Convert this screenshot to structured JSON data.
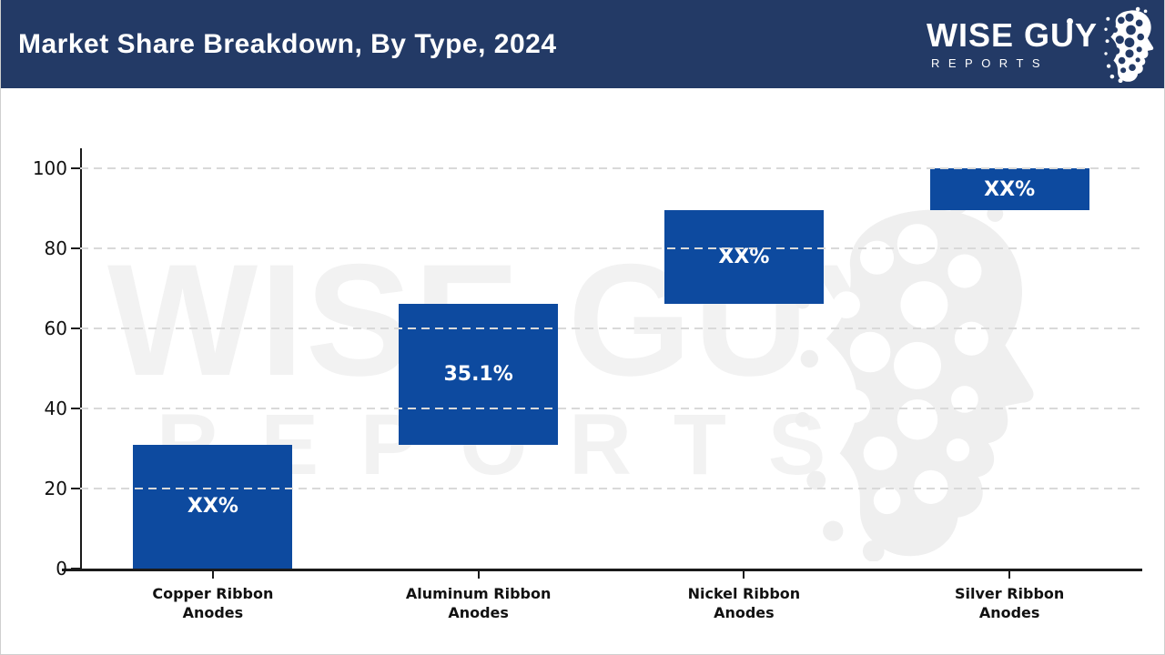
{
  "header": {
    "title": "Market Share Breakdown, By Type, 2024",
    "logo": {
      "line1": "WISE GUY",
      "line2": "REPORTS"
    }
  },
  "watermark": {
    "line1": "WISE GUY",
    "line2": "REPORTS"
  },
  "colors": {
    "header_bg": "#233a66",
    "bar": "#0d4a9f",
    "axis": "#1a1a1a",
    "grid": "#d9d9d9",
    "bar_label": "#ffffff",
    "watermark": "#f2f2f2"
  },
  "chart_data": {
    "type": "bar",
    "subtype": "waterfall",
    "title": "Market Share Breakdown, By Type, 2024",
    "categories": [
      "Copper Ribbon Anodes",
      "Aluminum Ribbon Anodes",
      "Nickel Ribbon Anodes",
      "Silver Ribbon Anodes"
    ],
    "category_lines": [
      [
        "Copper Ribbon",
        "Anodes"
      ],
      [
        "Aluminum Ribbon",
        "Anodes"
      ],
      [
        "Nickel Ribbon",
        "Anodes"
      ],
      [
        "Silver Ribbon",
        "Anodes"
      ]
    ],
    "segments": [
      {
        "category": "Copper Ribbon Anodes",
        "label": "XX%",
        "start": 0,
        "end": 31.0,
        "value": 31.0,
        "masked": true
      },
      {
        "category": "Aluminum Ribbon Anodes",
        "label": "35.1%",
        "start": 31.0,
        "end": 66.1,
        "value": 35.1,
        "masked": false
      },
      {
        "category": "Nickel Ribbon Anodes",
        "label": "XX%",
        "start": 66.1,
        "end": 89.5,
        "value": 23.4,
        "masked": true
      },
      {
        "category": "Silver Ribbon Anodes",
        "label": "XX%",
        "start": 89.5,
        "end": 100.0,
        "value": 10.5,
        "masked": true
      }
    ],
    "xlabel": "",
    "ylabel": "",
    "yticks": [
      0,
      20,
      40,
      60,
      80,
      100
    ],
    "ylim": [
      0,
      105
    ],
    "grid": "horizontal-dashed",
    "grid_above_bars": true,
    "legend": false,
    "bar_color": "#0d4a9f",
    "bar_label_color": "#ffffff"
  }
}
